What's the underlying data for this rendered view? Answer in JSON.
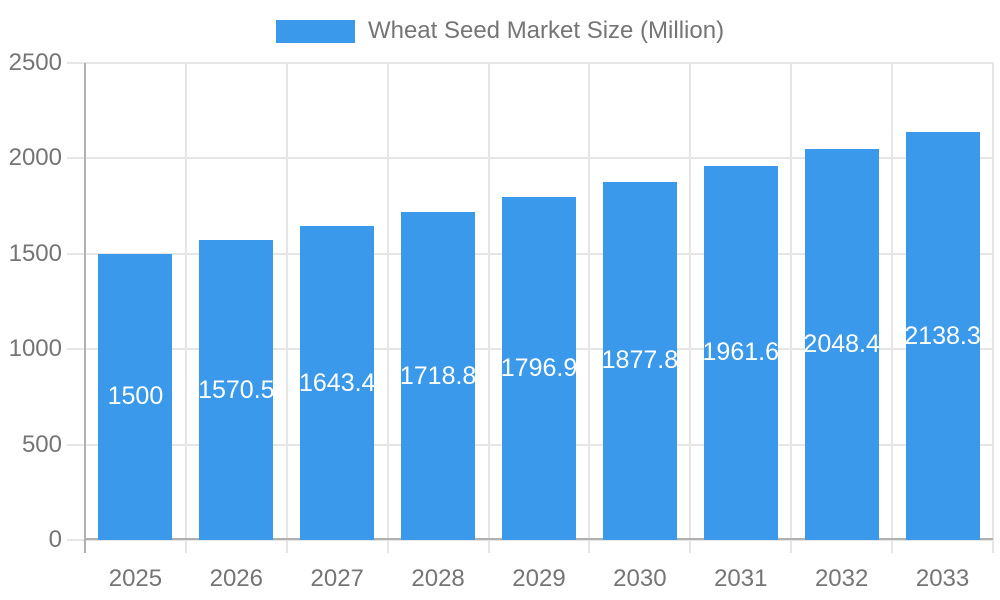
{
  "chart_data": {
    "type": "bar",
    "title": "Wheat Seed Market Size (Million)",
    "categories": [
      "2025",
      "2026",
      "2027",
      "2028",
      "2029",
      "2030",
      "2031",
      "2032",
      "2033"
    ],
    "values": [
      1500,
      1570.5,
      1643.4,
      1718.8,
      1796.9,
      1877.8,
      1961.6,
      2048.4,
      2138.3
    ],
    "value_labels": [
      "1500",
      "1570.5",
      "1643.4",
      "1718.8",
      "1796.9",
      "1877.8",
      "1961.6",
      "2048.4",
      "2138.3"
    ],
    "xlabel": "",
    "ylabel": "",
    "ylim": [
      0,
      2500
    ],
    "yticks": [
      0,
      500,
      1000,
      1500,
      2000,
      2500
    ],
    "grid": true,
    "legend_position": "top",
    "colors": {
      "bar": "#3B99EC",
      "value_label": "#FFFFFF",
      "axis_text": "#757575",
      "gridline": "#E6E6E6",
      "axis_line": "#B0B0B0",
      "background": "#FFFFFF"
    }
  }
}
